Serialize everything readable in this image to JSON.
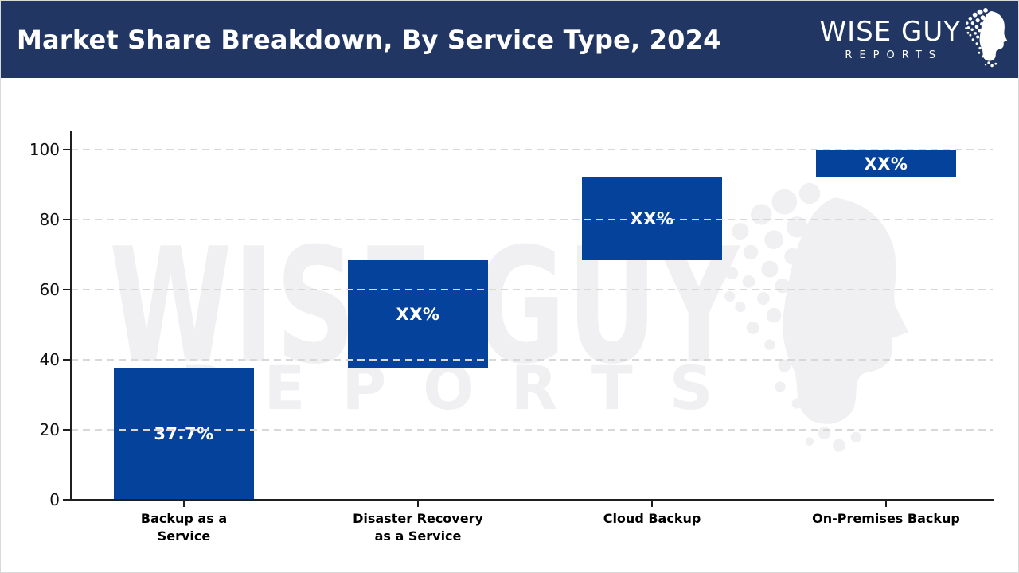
{
  "header": {
    "title": "Market Share Breakdown, By Service Type, 2024",
    "bg_color": "#213663",
    "logo": {
      "line1": "WISE GUY",
      "line2": "REPORTS"
    }
  },
  "watermark": {
    "line1": "WISE GUY",
    "line2": "REPORTS"
  },
  "chart_data": {
    "type": "bar",
    "subtype": "waterfall",
    "title": "Market Share Breakdown, By Service Type, 2024",
    "categories": [
      "Backup as a\nService",
      "Disaster Recovery\nas a Service",
      "Cloud Backup",
      "On-Premises Backup"
    ],
    "segments": [
      {
        "category": "Backup as a\nService",
        "start": 0,
        "end": 37.7,
        "value": 37.7,
        "label": "37.7%"
      },
      {
        "category": "Disaster Recovery\nas a Service",
        "start": 37.7,
        "end": 68.4,
        "value": 30.7,
        "label": "XX%"
      },
      {
        "category": "Cloud Backup",
        "start": 68.4,
        "end": 92.0,
        "value": 23.6,
        "label": "XX%"
      },
      {
        "category": "On-Premises Backup",
        "start": 92.0,
        "end": 100.0,
        "value": 8.0,
        "label": "XX%"
      }
    ],
    "xlabel": "",
    "ylabel": "",
    "ylim": [
      0,
      100
    ],
    "yticks": [
      0,
      20,
      40,
      60,
      80,
      100
    ],
    "grid": "horizontal-dashed",
    "grid_color": "#d8d8d8",
    "axis_color": "#1f1f1f",
    "bar_color": "#04429c",
    "bar_label_color": "#ffffff",
    "legend": "none"
  }
}
